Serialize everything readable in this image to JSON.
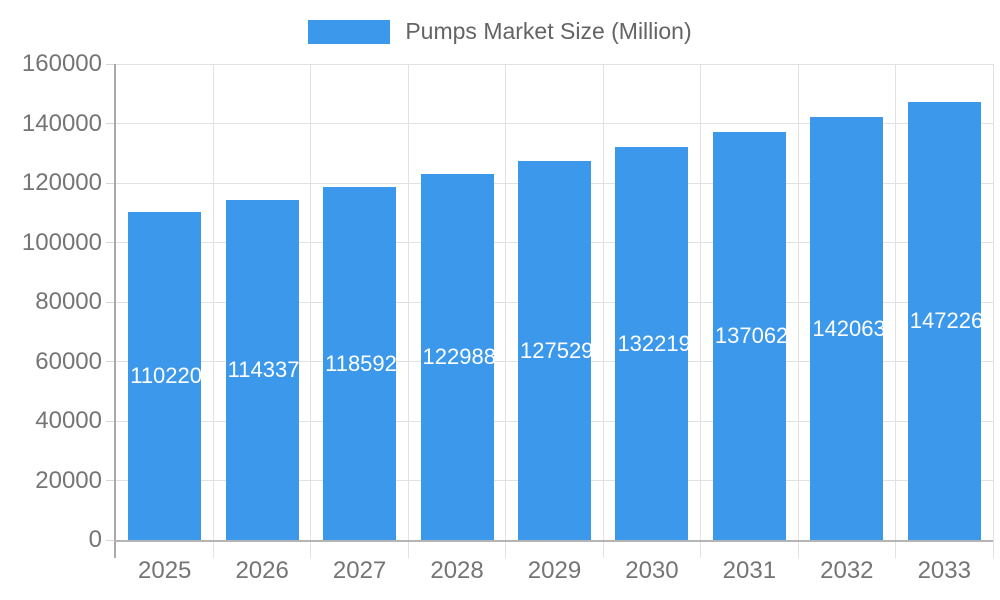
{
  "chart_data": {
    "type": "bar",
    "title": "Pumps Market Size (Million)",
    "categories": [
      "2025",
      "2026",
      "2027",
      "2028",
      "2029",
      "2030",
      "2031",
      "2032",
      "2033"
    ],
    "series": [
      {
        "name": "Pumps Market Size (Million)",
        "values": [
          110220,
          114337,
          118592,
          122988,
          127529,
          132219,
          137062,
          142063,
          147226
        ]
      }
    ],
    "bar_labels": [
      "110220",
      "114337",
      "118592",
      "122988",
      "127529",
      "132219",
      "137062",
      "142063",
      "147226"
    ],
    "xlabel": "",
    "ylabel": "",
    "ylim": [
      0,
      160000
    ],
    "y_ticks": [
      0,
      20000,
      40000,
      60000,
      80000,
      100000,
      120000,
      140000,
      160000
    ],
    "y_tick_labels": [
      "0",
      "20000",
      "40000",
      "60000",
      "80000",
      "100000",
      "120000",
      "140000",
      "160000"
    ],
    "grid": "on",
    "legend_position": "top-center",
    "bar_value_labels_position": "inside-center",
    "colors": {
      "bar": "#3B98EB",
      "bar_label_text": "#FFFFFF",
      "axis_text": "#757575",
      "legend_text": "#646464",
      "gridline": "#E2E2E2",
      "axis_line": "#A9A9A9",
      "background": "#FFFFFF"
    }
  }
}
